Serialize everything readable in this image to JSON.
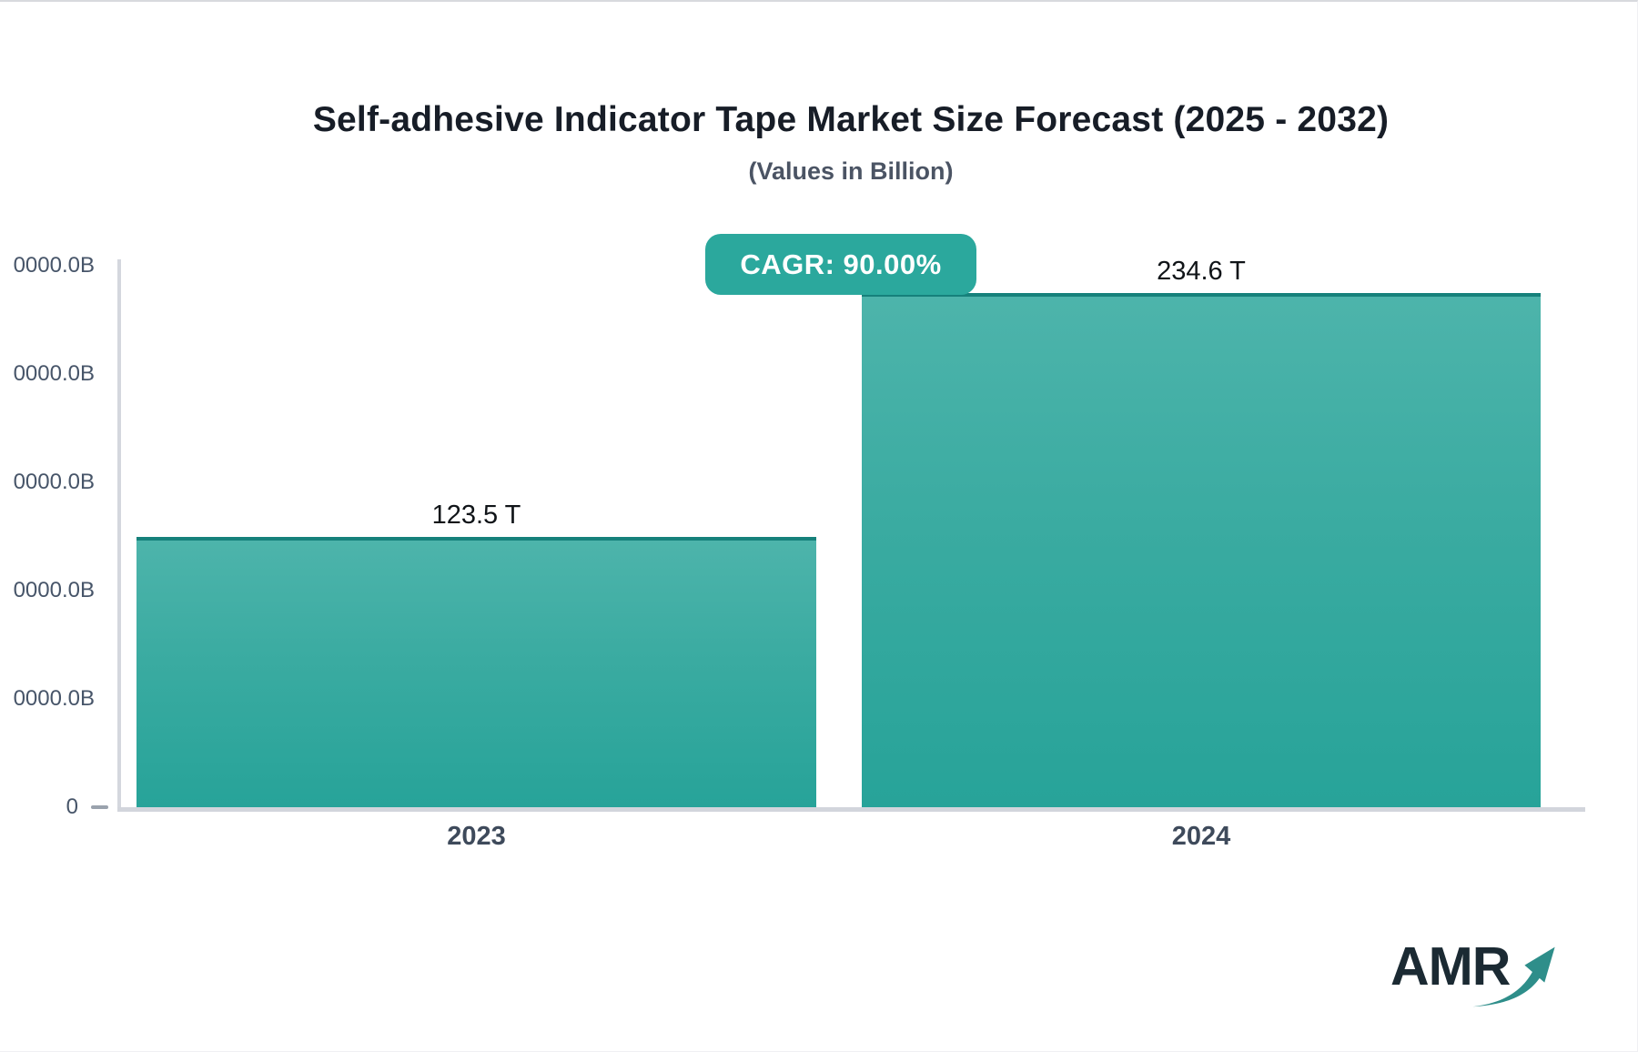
{
  "page": {
    "title": "Self-adhesive Indicator Tape Market Size Forecast (2025 - 2032)",
    "subtitle": "(Values in Billion)"
  },
  "badge": {
    "label": "CAGR: 90.00%"
  },
  "chart_data": {
    "type": "bar",
    "title": "Self-adhesive Indicator Tape Market Size Forecast (2025 - 2032)",
    "subtitle": "(Values in Billion)",
    "categories": [
      "2023",
      "2024"
    ],
    "values_T": [
      123.5,
      234.6
    ],
    "bar_labels": [
      "123.5 T",
      "234.6 T"
    ],
    "cagr_label": "CAGR: 90.00%",
    "ylim_T": [
      0,
      250
    ],
    "y_tick_labels_visible": [
      "0000.0B",
      "0000.0B",
      "0000.0B",
      "0000.0B",
      "0000.0B",
      "0"
    ],
    "grid": "off",
    "legend": "none",
    "bar_gradient_top": "#4db4ab",
    "bar_gradient_bottom": "#27a399",
    "bar_top_border": "#16817b"
  },
  "y_axis": {
    "labels": [
      "0000.0B",
      "0000.0B",
      "0000.0B",
      "0000.0B",
      "0000.0B",
      "0"
    ]
  },
  "x_axis": {
    "labels": [
      "2023",
      "2024"
    ]
  },
  "logo": {
    "text": "AMR",
    "icon": "trend-up-arrow"
  },
  "colors": {
    "accent_teal": "#2ba89d",
    "title_text": "#171d27",
    "subtitle_text": "#4b5464",
    "axis_text": "#475569",
    "axis_line": "#d4d7de",
    "logo_text": "#1b2a33",
    "logo_arrow": "#2e8e8a"
  }
}
